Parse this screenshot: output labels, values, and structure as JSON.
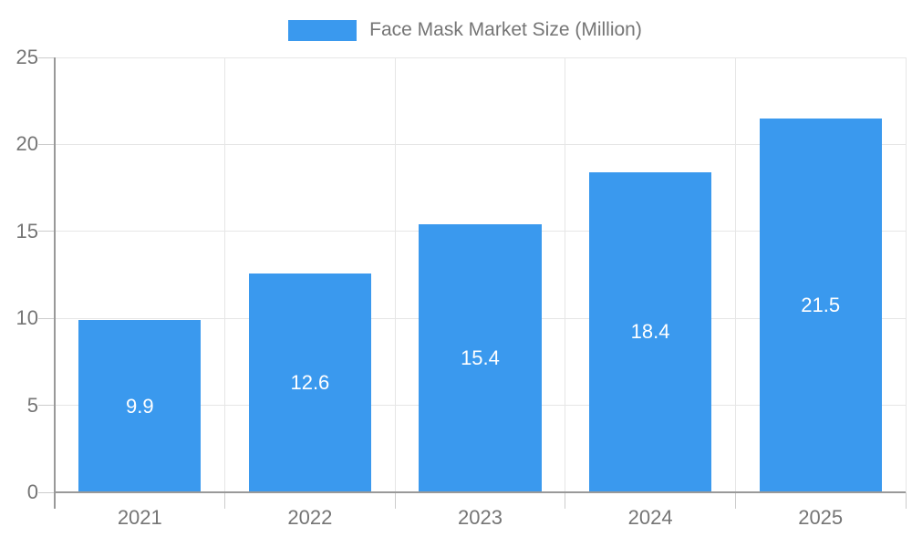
{
  "legend": {
    "label": "Face Mask Market Size (Million)"
  },
  "chart_data": {
    "type": "bar",
    "title": "Face Mask Market Size (Million)",
    "categories": [
      "2021",
      "2022",
      "2023",
      "2024",
      "2025"
    ],
    "values": [
      9.9,
      12.6,
      15.4,
      18.4,
      21.5
    ],
    "xlabel": "",
    "ylabel": "",
    "ylim": [
      0,
      25
    ],
    "yticks": [
      0,
      5,
      10,
      15,
      20,
      25
    ],
    "grid": true,
    "legend_position": "top-center",
    "value_labels": "inside-center"
  },
  "colors": {
    "bar": "#3a99ee",
    "axis_line": "#999999",
    "gridline": "#e6e6e6",
    "tick": "#cccccc",
    "tick_label": "#757575",
    "legend_text": "#757575",
    "value_label": "#ffffff",
    "background": "#ffffff"
  }
}
